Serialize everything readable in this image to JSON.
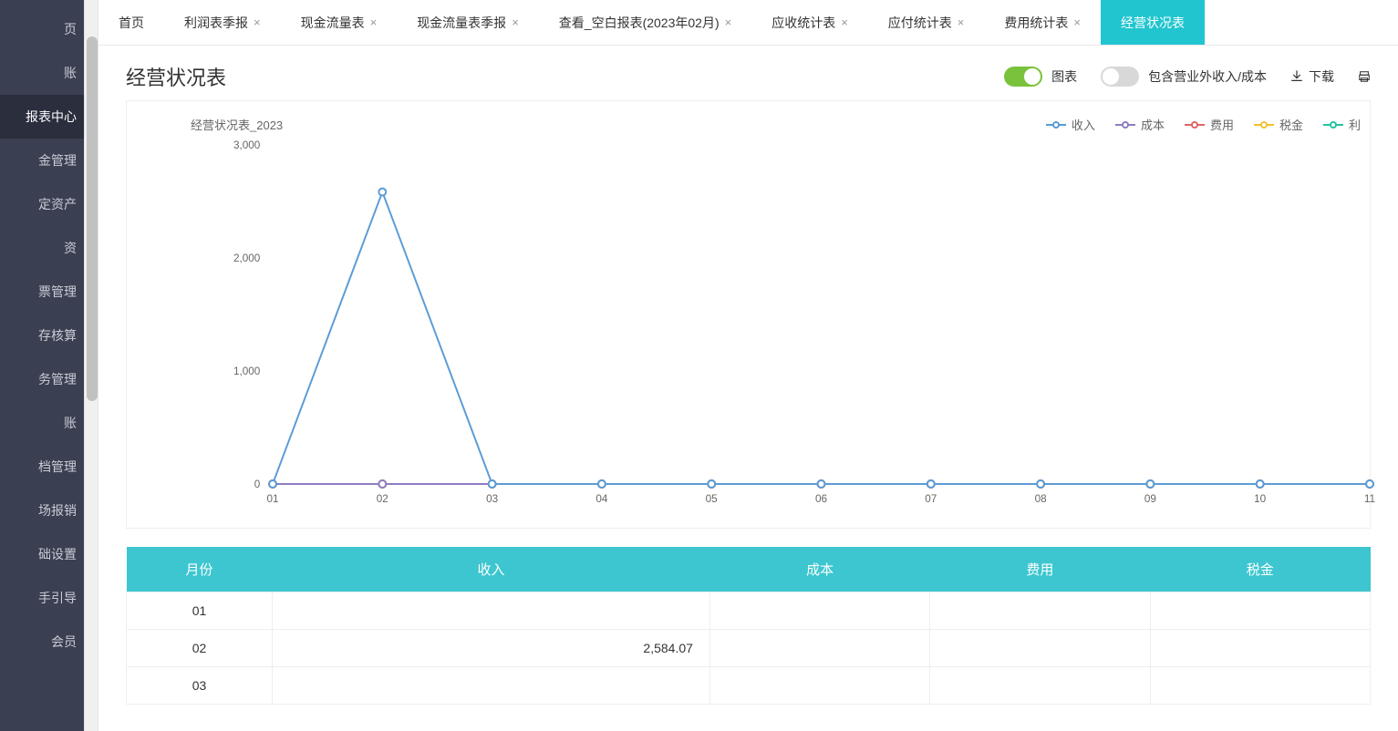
{
  "sidebar": {
    "items": [
      {
        "label": "页"
      },
      {
        "label": "账"
      },
      {
        "label": "报表中心",
        "active": true
      },
      {
        "label": "金管理"
      },
      {
        "label": "定资产"
      },
      {
        "label": "资"
      },
      {
        "label": "票管理"
      },
      {
        "label": "存核算"
      },
      {
        "label": "务管理"
      },
      {
        "label": "账"
      },
      {
        "label": "档管理"
      },
      {
        "label": "场报销"
      },
      {
        "label": "础设置"
      },
      {
        "label": "手引导"
      },
      {
        "label": "会员"
      }
    ]
  },
  "tabs": [
    {
      "label": "首页",
      "closable": false
    },
    {
      "label": "利润表季报",
      "closable": true
    },
    {
      "label": "现金流量表",
      "closable": true
    },
    {
      "label": "现金流量表季报",
      "closable": true
    },
    {
      "label": "查看_空白报表(2023年02月)",
      "closable": true
    },
    {
      "label": "应收统计表",
      "closable": true
    },
    {
      "label": "应付统计表",
      "closable": true
    },
    {
      "label": "费用统计表",
      "closable": true
    },
    {
      "label": "经营状况表",
      "closable": false,
      "active": true
    }
  ],
  "page": {
    "title": "经营状况表",
    "toggle_chart": {
      "label": "图表",
      "on": true
    },
    "toggle_extra": {
      "label": "包含营业外收入/成本",
      "on": false
    },
    "download_label": "下载"
  },
  "chart": {
    "title": "经营状况表_2023",
    "type": "line",
    "background_color": "#ffffff",
    "grid_color": "#e6e6e6",
    "axis_color": "#999999",
    "label_color": "#666666",
    "label_fontsize": 12,
    "ylim": [
      0,
      3000
    ],
    "ytick_step": 1000,
    "categories": [
      "01",
      "02",
      "03",
      "04",
      "05",
      "06",
      "07",
      "08",
      "09",
      "10",
      "11"
    ],
    "series": [
      {
        "name": "收入",
        "color": "#5b9bd5",
        "values": [
          0,
          2584.07,
          0,
          0,
          0,
          0,
          0,
          0,
          0,
          0,
          0
        ]
      },
      {
        "name": "成本",
        "color": "#8e7cc3",
        "values": [
          0,
          0,
          0,
          0,
          0,
          0,
          0,
          0,
          0,
          0,
          0
        ]
      },
      {
        "name": "费用",
        "color": "#e06666",
        "values": [
          0,
          0,
          0,
          0,
          0,
          0,
          0,
          0,
          0,
          0,
          0
        ]
      },
      {
        "name": "税金",
        "color": "#f1c232",
        "values": [
          0,
          0,
          0,
          0,
          0,
          0,
          0,
          0,
          0,
          0,
          0
        ]
      },
      {
        "name": "利",
        "color": "#25c2a0",
        "values": [
          0,
          0,
          0,
          0,
          0,
          0,
          0,
          0,
          0,
          0,
          0
        ]
      }
    ],
    "marker_radius": 4,
    "line_width": 2
  },
  "table": {
    "columns": [
      "月份",
      "收入",
      "成本",
      "费用",
      "税金"
    ],
    "rows": [
      {
        "month": "01",
        "income": "",
        "cost": "",
        "expense": "",
        "tax": ""
      },
      {
        "month": "02",
        "income": "2,584.07",
        "cost": "",
        "expense": "",
        "tax": ""
      },
      {
        "month": "03",
        "income": "",
        "cost": "",
        "expense": "",
        "tax": ""
      }
    ]
  }
}
